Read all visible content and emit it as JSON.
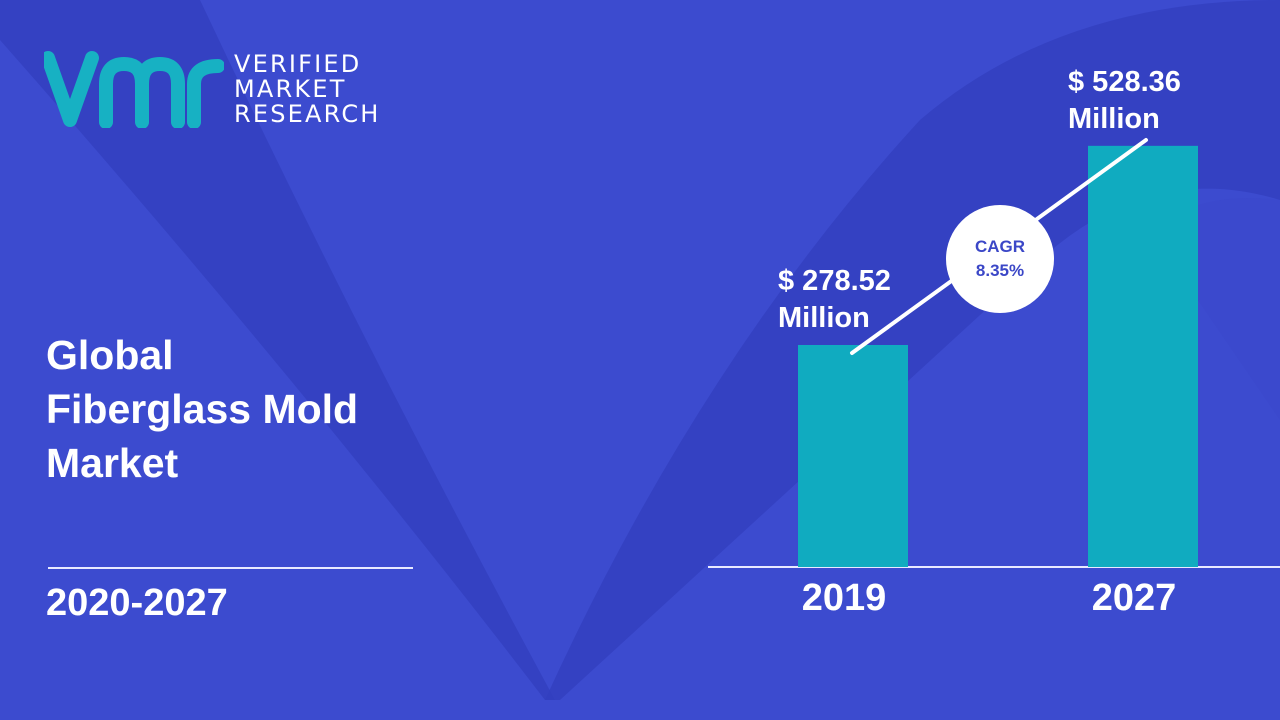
{
  "brand": {
    "logo_lines": [
      "VERIFIED",
      "MARKET",
      "RESEARCH"
    ],
    "colors": {
      "background": "#3c4bcf",
      "shape_dark": "#3340c0",
      "bar": "#10abc0",
      "logo_mark": "#17b1c3"
    }
  },
  "title_lines": [
    "Global",
    "Fiberglass Mold",
    "Market"
  ],
  "period": "2020-2027",
  "cagr": {
    "label": "CAGR",
    "value": "8.35%"
  },
  "chart_data": {
    "type": "bar",
    "categories": [
      "2019",
      "2027"
    ],
    "values": [
      278.52,
      528.36
    ],
    "value_labels": [
      [
        "$ 278.52",
        "Million"
      ],
      [
        "$ 528.36",
        "Million"
      ]
    ],
    "ylim": [
      0,
      690
    ],
    "grid": false,
    "legend": "none"
  }
}
